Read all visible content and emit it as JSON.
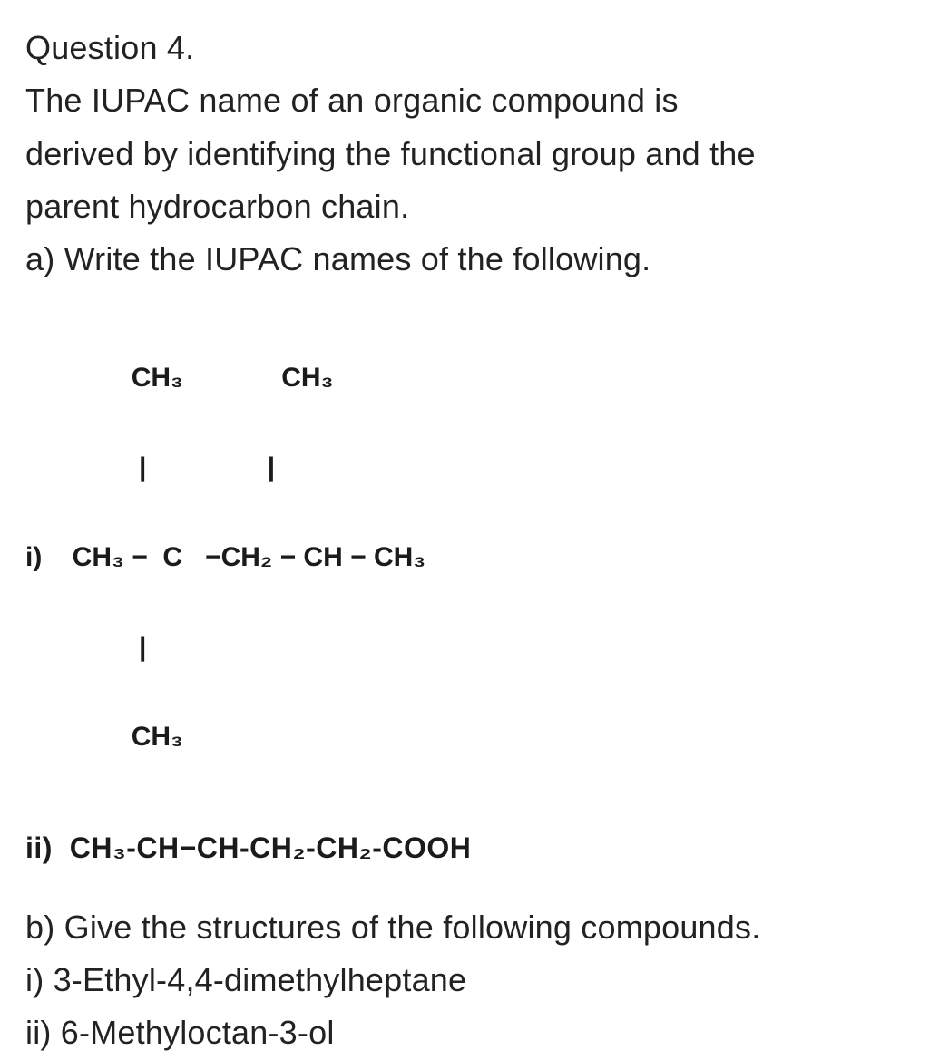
{
  "question": {
    "heading": "Question 4.",
    "intro_lines": [
      "The IUPAC name of an organic compound is",
      "derived by identifying the functional group and the",
      "parent hydrocarbon chain."
    ],
    "part_a_prompt": "a) Write the IUPAC names of the following.",
    "structure_i": {
      "row1": "              CH₃             CH₃",
      "row2": "               |                |",
      "row3": "i)    CH₃ −  C   −CH₂ − CH − CH₃",
      "row4": "               |",
      "row5": "              CH₃"
    },
    "part_a_ii_label": "ii)",
    "part_a_ii_formula": "CH₃-CH−CH-CH₂-CH₂-COOH",
    "part_b_prompt": "b) Give the structures of the following compounds.",
    "part_b_i": "i) 3-Ethyl-4,4-dimethylheptane",
    "part_b_ii": "ii) 6-Methyloctan-3-ol"
  }
}
